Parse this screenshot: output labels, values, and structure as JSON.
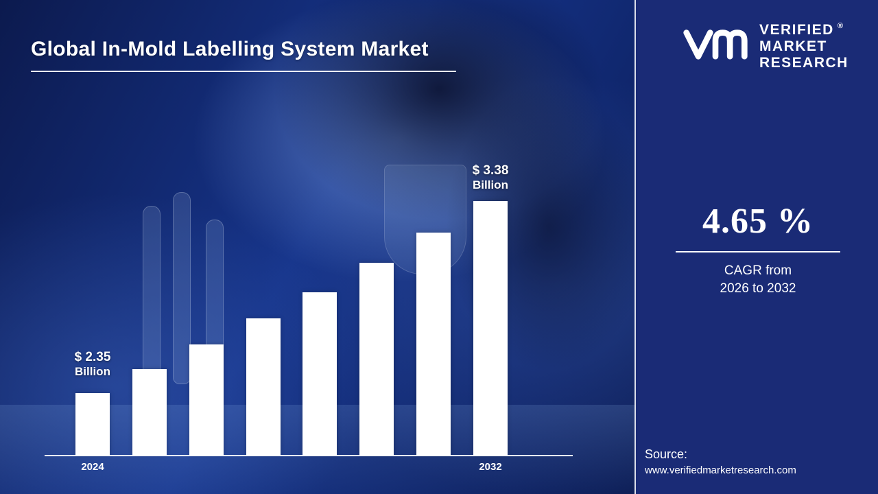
{
  "title": "Global In-Mold Labelling System Market",
  "logo": {
    "line1": "VERIFIED",
    "line2": "MARKET",
    "line3": "RESEARCH",
    "registered_mark": "®"
  },
  "kpi": {
    "value": "4.65 %",
    "caption_line1": "CAGR from",
    "caption_line2": "2026  to 2032"
  },
  "source": {
    "label": "Source:",
    "url": "www.verifiedmarketresearch.com"
  },
  "chart_data": {
    "type": "bar",
    "title": "Global In-Mold Labelling System Market",
    "x_tick_labels": [
      "2024",
      "2032"
    ],
    "values": [
      2.35,
      2.48,
      2.61,
      2.75,
      2.89,
      3.05,
      3.21,
      3.38
    ],
    "unit": "USD Billion",
    "bar_color": "#ffffff",
    "grid": false,
    "legend": false,
    "ylim_display": [
      2.35,
      3.38
    ],
    "annotations": {
      "first": {
        "value": "$ 2.35",
        "unit": "Billion"
      },
      "last": {
        "value": "$ 3.38",
        "unit": "Billion"
      }
    }
  }
}
